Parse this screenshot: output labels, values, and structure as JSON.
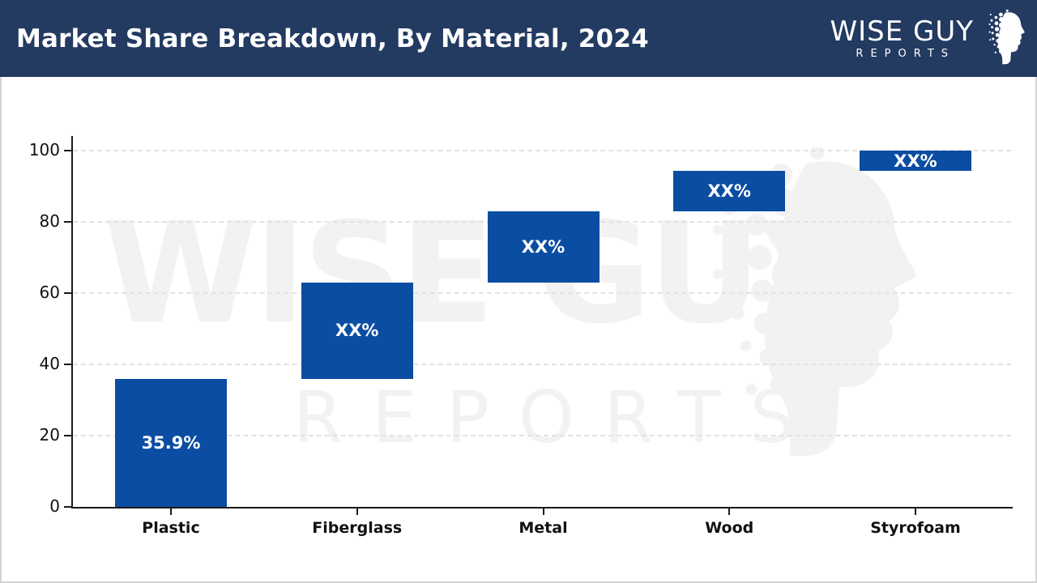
{
  "header": {
    "title": "Market Share Breakdown, By Material, 2024",
    "logo": {
      "line1": "WISE GUY",
      "line2": "REPORTS"
    }
  },
  "watermark": {
    "line1": "WISE GUY",
    "line2": "REPORTS"
  },
  "chart_data": {
    "type": "bar",
    "subtype": "waterfall-floating-bars",
    "title": "Market Share Breakdown, By Material, 2024",
    "categories": [
      "Plastic",
      "Fiberglass",
      "Metal",
      "Wood",
      "Styrofoam"
    ],
    "segments": [
      {
        "category": "Plastic",
        "start": 0,
        "end": 35.9,
        "label": "35.9%"
      },
      {
        "category": "Fiberglass",
        "start": 35.9,
        "end": 63,
        "label": "XX%"
      },
      {
        "category": "Metal",
        "start": 63,
        "end": 83,
        "label": "XX%"
      },
      {
        "category": "Wood",
        "start": 83,
        "end": 94.3,
        "label": "XX%"
      },
      {
        "category": "Styrofoam",
        "start": 94.3,
        "end": 100,
        "label": "XX%"
      }
    ],
    "xlabel": "",
    "ylabel": "",
    "ylim": [
      0,
      104.5
    ],
    "yticks": [
      0,
      20,
      40,
      60,
      80,
      100
    ],
    "grid": "horizontal-dashed",
    "legend": "none",
    "colors": {
      "bar": "#0b4da2",
      "bar_label": "#ffffff",
      "axis": "#1a1a1a",
      "gridline": "#e2e2e2",
      "header_bg": "#233a61",
      "header_text": "#ffffff",
      "watermark": "#f2f2f2"
    }
  }
}
